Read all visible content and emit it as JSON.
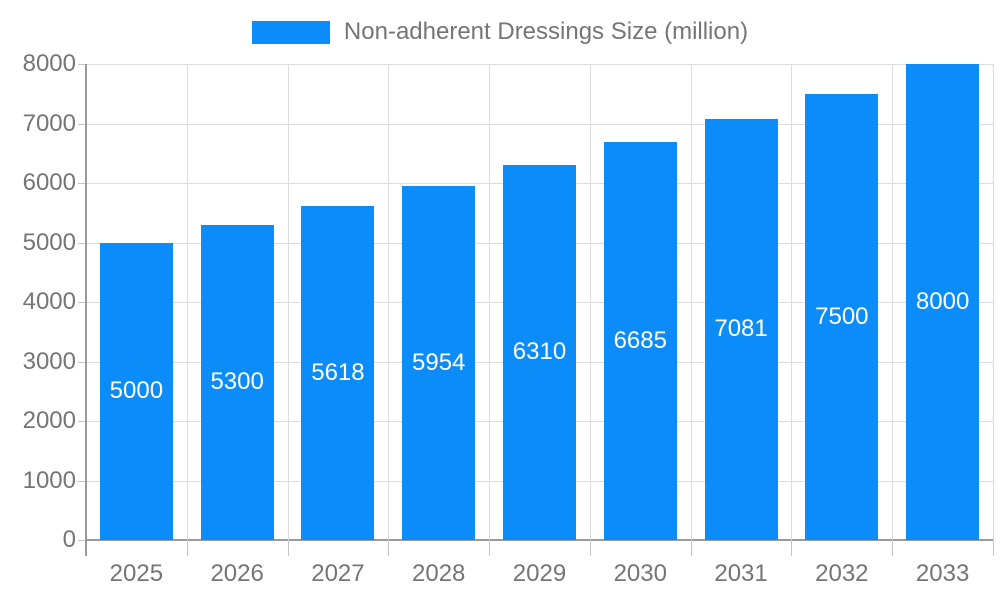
{
  "legend": {
    "label": "Non-adherent Dressings Size (million)"
  },
  "chart_data": {
    "type": "bar",
    "title": "Non-adherent Dressings Size (million)",
    "series_name": "Non-adherent Dressings Size (million)",
    "categories": [
      "2025",
      "2026",
      "2027",
      "2028",
      "2029",
      "2030",
      "2031",
      "2032",
      "2033"
    ],
    "values": [
      5000,
      5300,
      5618,
      5954,
      6310,
      6685,
      7081,
      7500,
      8000
    ],
    "data_labels": [
      "5000",
      "5300",
      "5618",
      "5954",
      "6310",
      "6685",
      "7081",
      "7500",
      "8000"
    ],
    "xlabel": "",
    "ylabel": "",
    "ylim": [
      0,
      8000
    ],
    "y_ticks": [
      0,
      1000,
      2000,
      3000,
      4000,
      5000,
      6000,
      7000,
      8000
    ],
    "grid": true,
    "legend_position": "top",
    "bar_color": "#0b8cf8",
    "bar_label_color": "#ffffff",
    "axis_text_color": "#757575",
    "gridline_color": "#dcdcdc",
    "axis_line_color": "#9a9a9a"
  }
}
